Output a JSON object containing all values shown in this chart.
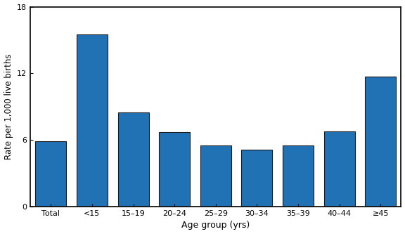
{
  "categories": [
    "Total",
    "<15",
    "15–19",
    "20–24",
    "25–29",
    "30–34",
    "35–39",
    "40–44",
    "≥45"
  ],
  "values": [
    5.9,
    15.5,
    8.5,
    6.7,
    5.5,
    5.1,
    5.5,
    6.8,
    11.7
  ],
  "bar_color": "#2171b5",
  "bar_edge_color": "#1a1a1a",
  "xlabel": "Age group (yrs)",
  "ylabel": "Rate per 1,000 live births",
  "ylim": [
    0,
    18
  ],
  "yticks": [
    0,
    6,
    12,
    18
  ],
  "background_color": "#ffffff",
  "axis_linewidth": 1.2,
  "bar_width": 0.75,
  "xlabel_fontsize": 9,
  "ylabel_fontsize": 8.5,
  "tick_fontsize": 8
}
